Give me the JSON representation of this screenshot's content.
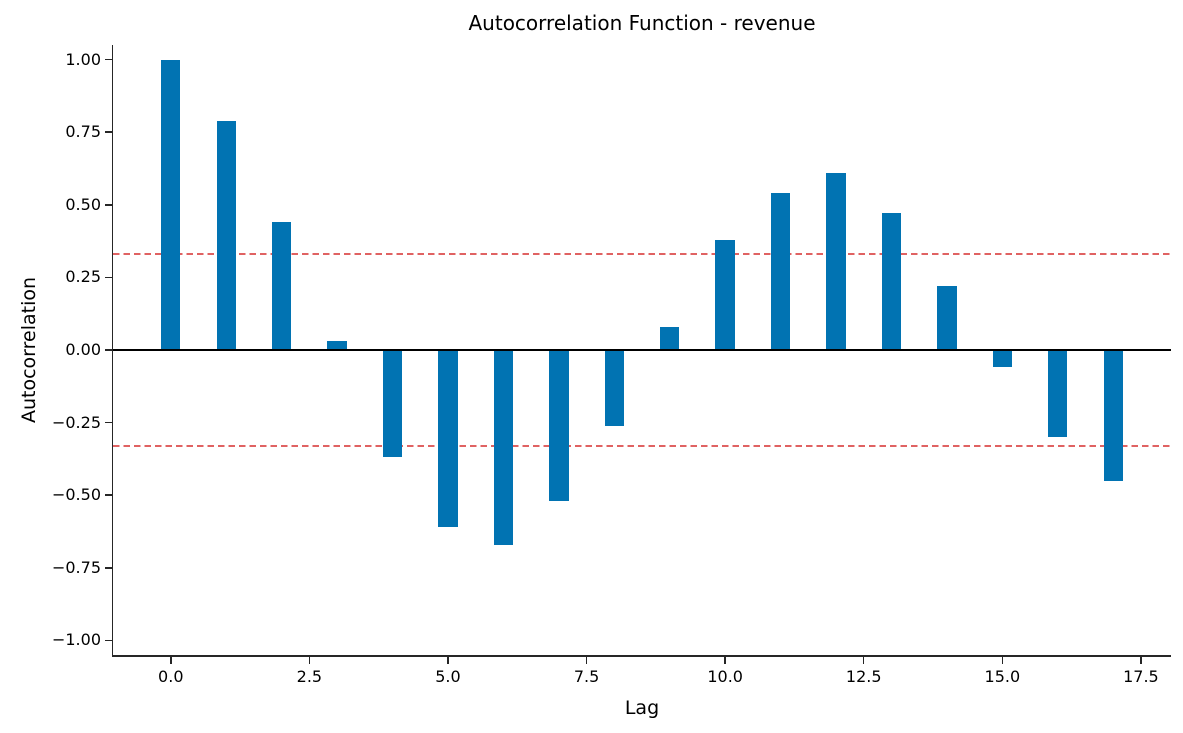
{
  "chart_data": {
    "type": "bar",
    "title": "Autocorrelation Function - revenue",
    "xlabel": "Lag",
    "ylabel": "Autocorrelation",
    "x": [
      0,
      1,
      2,
      3,
      4,
      5,
      6,
      7,
      8,
      9,
      10,
      11,
      12,
      13,
      14,
      15,
      16,
      17
    ],
    "values": [
      1.0,
      0.79,
      0.44,
      0.03,
      -0.37,
      -0.61,
      -0.67,
      -0.52,
      -0.26,
      0.08,
      0.38,
      0.54,
      0.61,
      0.47,
      0.22,
      -0.06,
      -0.3,
      -0.45
    ],
    "confidence_interval": 0.33,
    "confidence_lines": [
      0.33,
      -0.33
    ],
    "zero_line": 0,
    "xlim": [
      -1.0425,
      18.0425
    ],
    "ylim": [
      -1.05,
      1.05
    ],
    "yticks": [
      1.0,
      0.75,
      0.5,
      0.25,
      0.0,
      -0.25,
      -0.5,
      -0.75,
      -1.0
    ],
    "ytick_labels": [
      "1.00",
      "0.75",
      "0.50",
      "0.25",
      "0.00",
      "−0.25",
      "−0.50",
      "−0.75",
      "−1.00"
    ],
    "xticks": [
      0,
      2.5,
      5,
      7.5,
      10,
      12.5,
      15,
      17.5
    ],
    "xtick_labels": [
      "0.0",
      "2.5",
      "5.0",
      "7.5",
      "10.0",
      "12.5",
      "15.0",
      "17.5"
    ],
    "bar_width_lag_units": 0.35,
    "grid": false,
    "legend": "none",
    "colors": {
      "bar": "#0173b2",
      "confidence_line": "#e06262",
      "zero_line": "#000000",
      "spine": "#262626",
      "background": "#ffffff"
    }
  }
}
